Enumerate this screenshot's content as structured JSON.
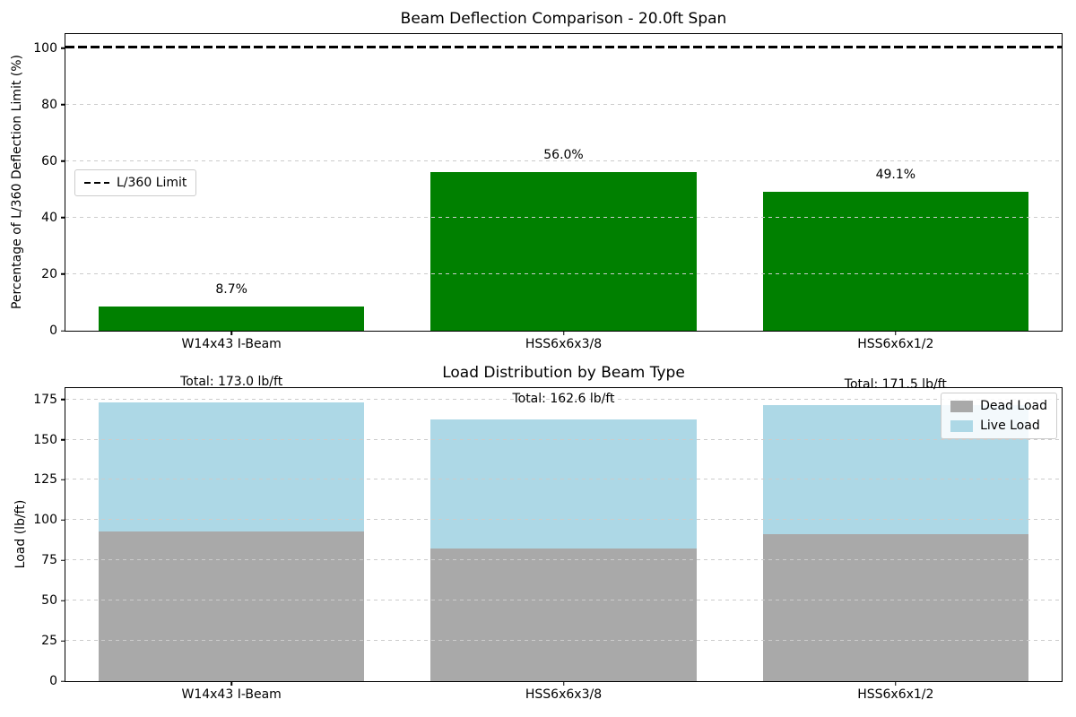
{
  "figure": {
    "background": "#ffffff",
    "text_color": "#000000",
    "grid_color": "#cccccc"
  },
  "chart_data": [
    {
      "type": "bar",
      "title": "Beam Deflection Comparison - 20.0ft Span",
      "ylabel": "Percentage of L/360 Deflection Limit (%)",
      "xlabel": "",
      "categories": [
        "W14x43 I-Beam",
        "HSS6x6x3/8",
        "HSS6x6x1/2"
      ],
      "values": [
        8.7,
        56.0,
        49.1
      ],
      "bar_labels": [
        "8.7%",
        "56.0%",
        "49.1%"
      ],
      "bar_color": "#008000",
      "ylim": [
        0,
        105
      ],
      "ymax": 105,
      "yticks": [
        "0",
        "20",
        "40",
        "60",
        "80",
        "100"
      ],
      "grid": "horizontal-dashed",
      "limit_line": {
        "value": 100,
        "style": "dashed",
        "color": "#000000",
        "legend_label": "L/360 Limit"
      },
      "legend_position": "center-left"
    },
    {
      "type": "bar",
      "stacked": true,
      "title": "Load Distribution by Beam Type",
      "ylabel": "Load (lb/ft)",
      "xlabel": "",
      "categories": [
        "W14x43 I-Beam",
        "HSS6x6x3/8",
        "HSS6x6x1/2"
      ],
      "series": [
        {
          "name": "Dead Load",
          "color": "#a9a9a9",
          "values": [
            93.0,
            82.6,
            91.5
          ]
        },
        {
          "name": "Live Load",
          "color": "#add8e6",
          "values": [
            80.0,
            80.0,
            80.0
          ]
        }
      ],
      "totals": [
        173.0,
        162.6,
        171.5
      ],
      "total_labels": [
        "Total: 173.0 lb/ft",
        "Total: 162.6 lb/ft",
        "Total: 171.5 lb/ft"
      ],
      "ylim": [
        0,
        182
      ],
      "ymax": 182,
      "yticks": [
        "0",
        "25",
        "50",
        "75",
        "100",
        "125",
        "150",
        "175"
      ],
      "grid": "horizontal-dashed",
      "legend_position": "upper-right",
      "legend_labels": [
        "Dead Load",
        "Live Load"
      ]
    }
  ]
}
